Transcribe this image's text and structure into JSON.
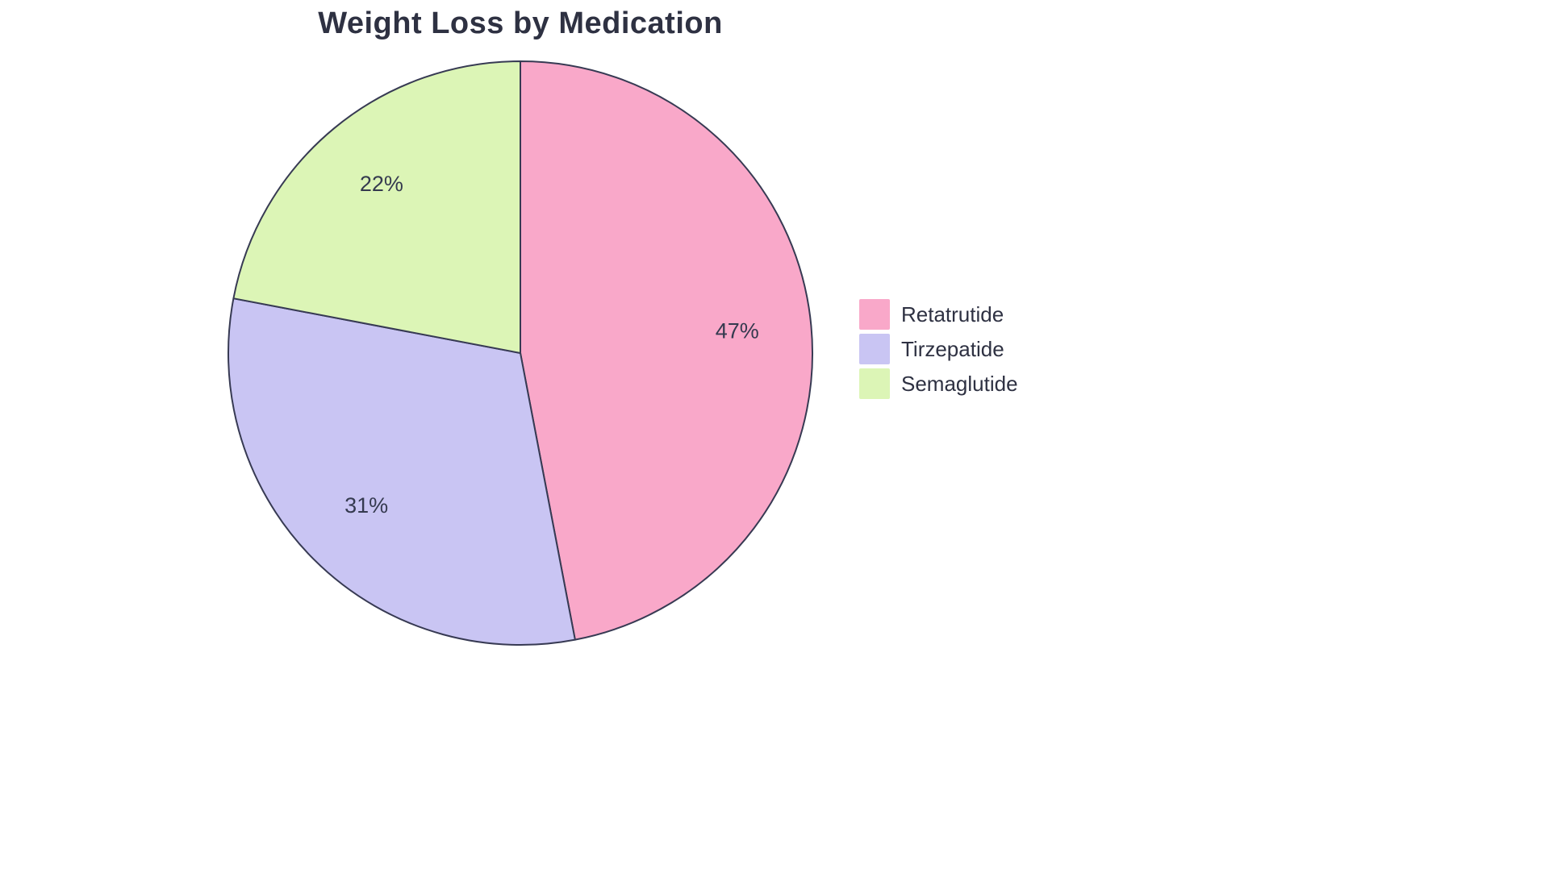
{
  "chart_data": {
    "type": "pie",
    "title": "Weight Loss by Medication",
    "start_angle_deg": 0,
    "direction": "clockwise",
    "legend_position": "right",
    "labels_inside": true,
    "stroke_color": "#373A53",
    "slices": [
      {
        "label": "Retatrutide",
        "value": 47,
        "display": "47%",
        "color": "#F9A8C9"
      },
      {
        "label": "Tirzepatide",
        "value": 31,
        "display": "31%",
        "color": "#C9C5F3"
      },
      {
        "label": "Semaglutide",
        "value": 22,
        "display": "22%",
        "color": "#DCF5B6"
      }
    ]
  }
}
